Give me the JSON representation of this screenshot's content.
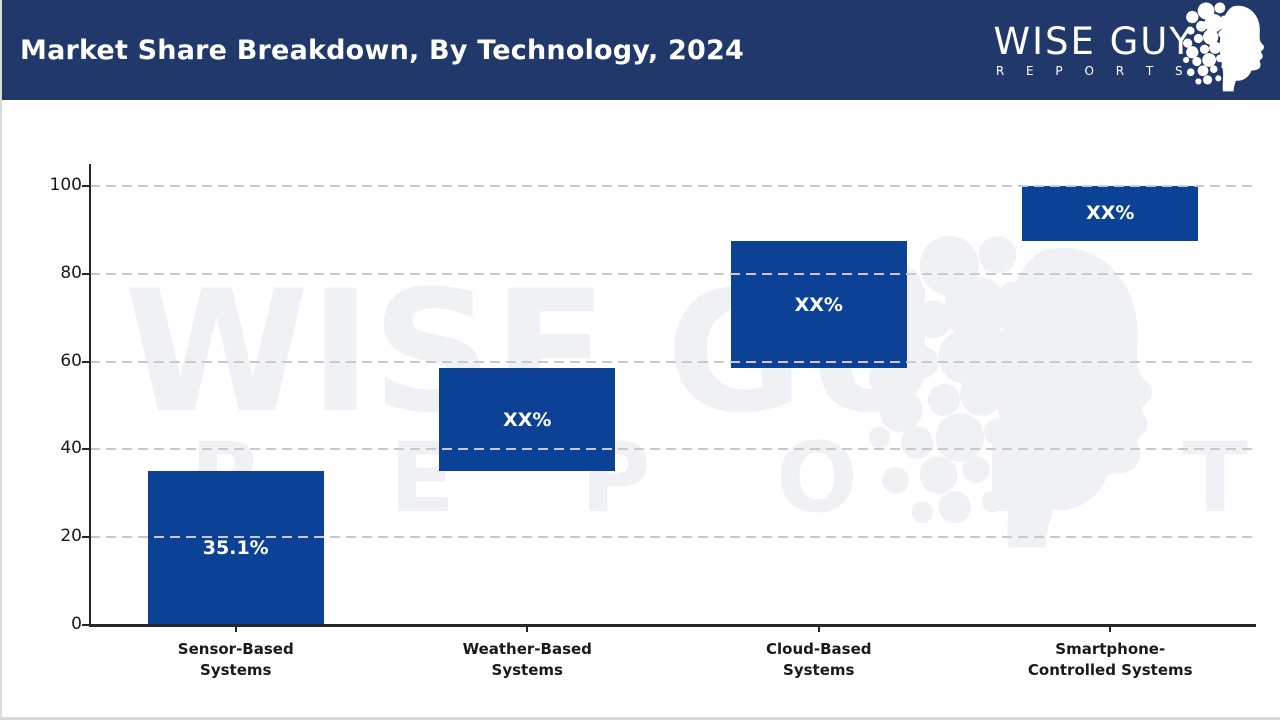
{
  "header": {
    "title": "Market Share Breakdown, By Technology, 2024",
    "logo_line1": "WISE GUY",
    "logo_line2": "R E P O R T S"
  },
  "watermark": {
    "line1": "WISE GUY",
    "line2": "R E P O R T S"
  },
  "colors": {
    "header_bg": "#21386a",
    "bar": "#0b4295",
    "axis": "#262626",
    "grid": "#c9c9c9",
    "tick_label": "#1a1a1a",
    "value_label": "#ffffff",
    "watermark": "#f0f1f4",
    "border": "#d9d9d9"
  },
  "chart_data": {
    "type": "bar",
    "subtype": "waterfall-stacked-percent",
    "title": "Market Share Breakdown, By Technology, 2024",
    "categories": [
      {
        "line1": "Sensor-Based",
        "line2": "Systems"
      },
      {
        "line1": "Weather-Based",
        "line2": "Systems"
      },
      {
        "line1": "Cloud-Based",
        "line2": "Systems"
      },
      {
        "line1": "Smartphone-",
        "line2": "Controlled Systems"
      }
    ],
    "segments": [
      {
        "start": 0,
        "end": 35.1,
        "label": "35.1%"
      },
      {
        "start": 35.1,
        "end": 58.5,
        "label": "XX%"
      },
      {
        "start": 58.5,
        "end": 87.5,
        "label": "XX%"
      },
      {
        "start": 87.5,
        "end": 100,
        "label": "XX%"
      }
    ],
    "ylim": [
      0,
      100
    ],
    "yticks": [
      0,
      20,
      40,
      60,
      80,
      100
    ],
    "grid": "horizontal-dashed",
    "legend": "none",
    "xlabel": "",
    "ylabel": ""
  }
}
